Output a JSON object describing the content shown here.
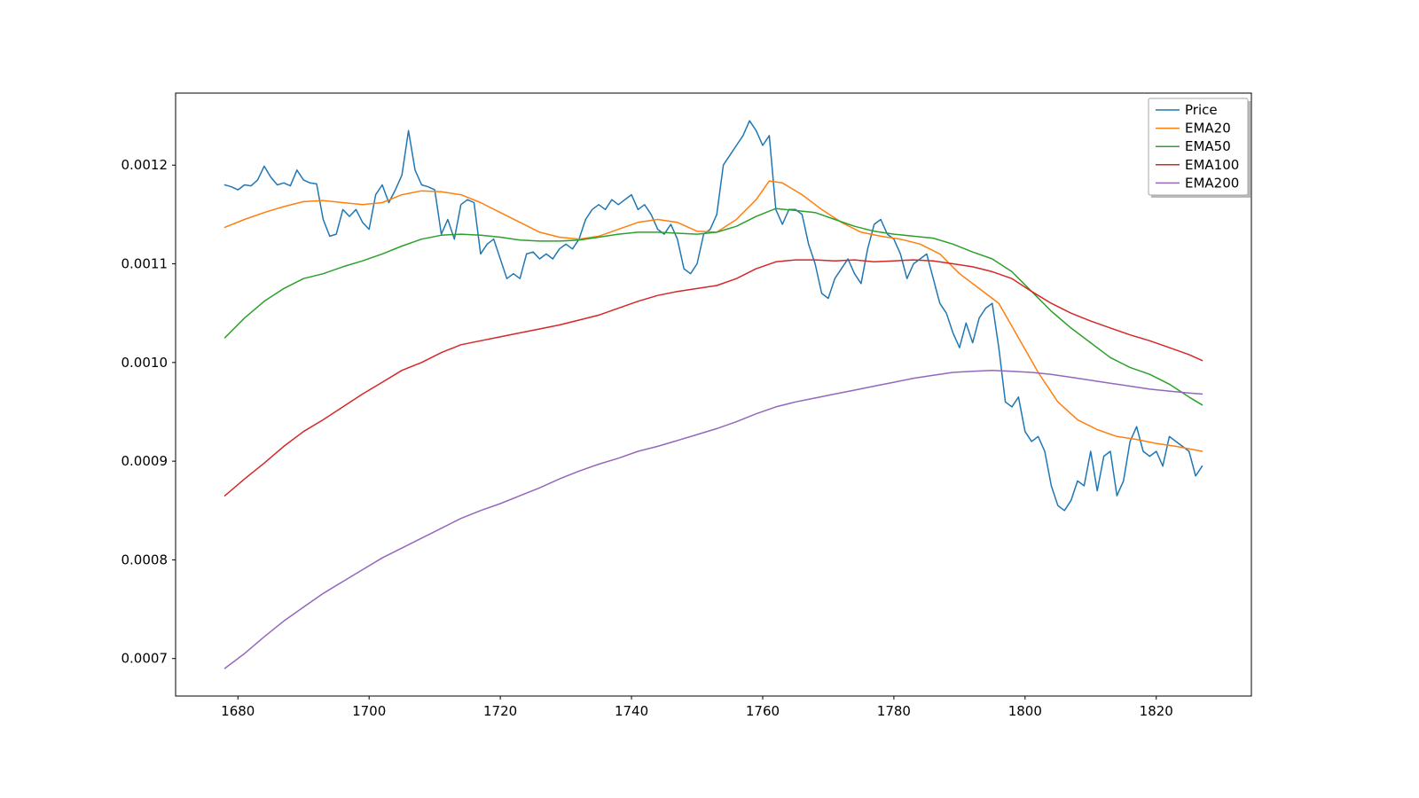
{
  "figure": {
    "background": "#ffffff",
    "axis_color": "#000000",
    "tick_label_color": "#262626"
  },
  "chart_data": {
    "type": "line",
    "title": "",
    "xlabel": "",
    "ylabel": "",
    "grid": false,
    "xlim": [
      1670.5,
      1834.5
    ],
    "ylim": [
      0.000662,
      0.001273
    ],
    "x_ticks": [
      1680,
      1700,
      1720,
      1740,
      1760,
      1780,
      1800,
      1820
    ],
    "y_ticks": [
      0.0007,
      0.0008,
      0.0009,
      0.001,
      0.0011,
      0.0012
    ],
    "legend": {
      "position": "upper right",
      "entries": [
        "Price",
        "EMA20",
        "EMA50",
        "EMA100",
        "EMA200"
      ]
    },
    "series": [
      {
        "name": "Price",
        "color": "#1f77b4",
        "x_start": 1678,
        "x_step": 1,
        "y": [
          0.00118,
          0.001178,
          0.001175,
          0.00118,
          0.001179,
          0.001185,
          0.001199,
          0.001188,
          0.00118,
          0.001182,
          0.001179,
          0.001195,
          0.001185,
          0.001182,
          0.001181,
          0.001145,
          0.001128,
          0.00113,
          0.001155,
          0.001148,
          0.001155,
          0.001142,
          0.001135,
          0.00117,
          0.00118,
          0.001162,
          0.001175,
          0.00119,
          0.001235,
          0.001195,
          0.00118,
          0.001178,
          0.001175,
          0.00113,
          0.001145,
          0.001125,
          0.00116,
          0.001165,
          0.001162,
          0.00111,
          0.00112,
          0.001125,
          0.001105,
          0.001085,
          0.00109,
          0.001085,
          0.00111,
          0.001112,
          0.001105,
          0.00111,
          0.001105,
          0.001115,
          0.00112,
          0.001115,
          0.001125,
          0.001145,
          0.001155,
          0.00116,
          0.001155,
          0.001165,
          0.00116,
          0.001165,
          0.00117,
          0.001155,
          0.00116,
          0.00115,
          0.001135,
          0.00113,
          0.00114,
          0.001125,
          0.001095,
          0.00109,
          0.0011,
          0.00113,
          0.001135,
          0.00115,
          0.0012,
          0.00121,
          0.00122,
          0.00123,
          0.001245,
          0.001235,
          0.00122,
          0.00123,
          0.001155,
          0.00114,
          0.001155,
          0.001155,
          0.00115,
          0.00112,
          0.0011,
          0.00107,
          0.001065,
          0.001085,
          0.001095,
          0.001105,
          0.00109,
          0.00108,
          0.001115,
          0.00114,
          0.001145,
          0.00113,
          0.001125,
          0.00111,
          0.001085,
          0.0011,
          0.001105,
          0.00111,
          0.001085,
          0.00106,
          0.00105,
          0.00103,
          0.001015,
          0.00104,
          0.00102,
          0.001045,
          0.001055,
          0.00106,
          0.001015,
          0.00096,
          0.000955,
          0.000965,
          0.00093,
          0.00092,
          0.000925,
          0.00091,
          0.000875,
          0.000855,
          0.00085,
          0.00086,
          0.00088,
          0.000875,
          0.00091,
          0.00087,
          0.000905,
          0.00091,
          0.000865,
          0.00088,
          0.00092,
          0.000935,
          0.00091,
          0.000905,
          0.00091,
          0.000895,
          0.000925,
          0.00092,
          0.000915,
          0.00091,
          0.000885,
          0.000895
        ]
      },
      {
        "name": "EMA20",
        "color": "#ff7f0e",
        "x": [
          1678,
          1681,
          1684,
          1687,
          1690,
          1693,
          1696,
          1699,
          1702,
          1705,
          1708,
          1711,
          1714,
          1717,
          1720,
          1723,
          1726,
          1729,
          1732,
          1735,
          1738,
          1741,
          1744,
          1747,
          1750,
          1753,
          1756,
          1759,
          1761,
          1763,
          1766,
          1769,
          1772,
          1775,
          1778,
          1781,
          1784,
          1787,
          1790,
          1793,
          1796,
          1799,
          1802,
          1805,
          1808,
          1811,
          1814,
          1817,
          1820,
          1823,
          1827
        ],
        "y": [
          0.001137,
          0.001145,
          0.001152,
          0.001158,
          0.001163,
          0.001164,
          0.001162,
          0.00116,
          0.001162,
          0.00117,
          0.001174,
          0.001173,
          0.00117,
          0.001162,
          0.001152,
          0.001142,
          0.001132,
          0.001127,
          0.001125,
          0.001128,
          0.001135,
          0.001142,
          0.001145,
          0.001142,
          0.001133,
          0.001132,
          0.001145,
          0.001165,
          0.001184,
          0.001182,
          0.00117,
          0.001155,
          0.001142,
          0.001132,
          0.001128,
          0.001125,
          0.00112,
          0.00111,
          0.00109,
          0.001075,
          0.00106,
          0.001025,
          0.00099,
          0.00096,
          0.000942,
          0.000932,
          0.000925,
          0.000922,
          0.000918,
          0.000915,
          0.00091
        ]
      },
      {
        "name": "EMA50",
        "color": "#2ca02c",
        "x": [
          1678,
          1681,
          1684,
          1687,
          1690,
          1693,
          1696,
          1699,
          1702,
          1705,
          1708,
          1711,
          1714,
          1717,
          1720,
          1723,
          1726,
          1729,
          1732,
          1735,
          1738,
          1741,
          1744,
          1747,
          1750,
          1753,
          1756,
          1759,
          1762,
          1765,
          1768,
          1771,
          1774,
          1777,
          1780,
          1783,
          1786,
          1789,
          1792,
          1795,
          1798,
          1801,
          1804,
          1807,
          1810,
          1813,
          1816,
          1819,
          1822,
          1825,
          1827
        ],
        "y": [
          0.001025,
          0.001045,
          0.001062,
          0.001075,
          0.001085,
          0.00109,
          0.001097,
          0.001103,
          0.00111,
          0.001118,
          0.001125,
          0.001129,
          0.00113,
          0.001129,
          0.001127,
          0.001124,
          0.001123,
          0.001123,
          0.001124,
          0.001127,
          0.00113,
          0.001132,
          0.001132,
          0.001131,
          0.00113,
          0.001132,
          0.001138,
          0.001148,
          0.001156,
          0.001154,
          0.001152,
          0.001145,
          0.001138,
          0.001133,
          0.00113,
          0.001128,
          0.001126,
          0.00112,
          0.001112,
          0.001105,
          0.001092,
          0.001072,
          0.001052,
          0.001035,
          0.00102,
          0.001005,
          0.000995,
          0.000988,
          0.000978,
          0.000965,
          0.000957
        ]
      },
      {
        "name": "EMA100",
        "color": "#d62728",
        "x": [
          1678,
          1681,
          1684,
          1687,
          1690,
          1693,
          1696,
          1699,
          1702,
          1705,
          1708,
          1711,
          1714,
          1717,
          1720,
          1723,
          1726,
          1729,
          1732,
          1735,
          1738,
          1741,
          1744,
          1747,
          1750,
          1753,
          1756,
          1759,
          1762,
          1765,
          1768,
          1771,
          1774,
          1777,
          1780,
          1783,
          1786,
          1789,
          1792,
          1795,
          1798,
          1801,
          1804,
          1807,
          1810,
          1813,
          1816,
          1819,
          1822,
          1825,
          1827
        ],
        "y": [
          0.000865,
          0.000882,
          0.000898,
          0.000915,
          0.00093,
          0.000942,
          0.000955,
          0.000968,
          0.00098,
          0.000992,
          0.001,
          0.00101,
          0.001018,
          0.001022,
          0.001026,
          0.00103,
          0.001034,
          0.001038,
          0.001043,
          0.001048,
          0.001055,
          0.001062,
          0.001068,
          0.001072,
          0.001075,
          0.001078,
          0.001085,
          0.001095,
          0.001102,
          0.001104,
          0.001104,
          0.001103,
          0.001104,
          0.001102,
          0.001103,
          0.001104,
          0.001103,
          0.0011,
          0.001097,
          0.001092,
          0.001085,
          0.001072,
          0.00106,
          0.00105,
          0.001042,
          0.001035,
          0.001028,
          0.001022,
          0.001015,
          0.001008,
          0.001002
        ]
      },
      {
        "name": "EMA200",
        "color": "#9467bd",
        "x": [
          1678,
          1681,
          1684,
          1687,
          1690,
          1693,
          1696,
          1699,
          1702,
          1705,
          1708,
          1711,
          1714,
          1717,
          1720,
          1723,
          1726,
          1729,
          1732,
          1735,
          1738,
          1741,
          1744,
          1747,
          1750,
          1753,
          1756,
          1759,
          1762,
          1765,
          1768,
          1771,
          1774,
          1777,
          1780,
          1783,
          1786,
          1789,
          1792,
          1795,
          1798,
          1801,
          1804,
          1807,
          1810,
          1813,
          1816,
          1819,
          1822,
          1825,
          1827
        ],
        "y": [
          0.00069,
          0.000705,
          0.000722,
          0.000738,
          0.000752,
          0.000766,
          0.000778,
          0.00079,
          0.000802,
          0.000812,
          0.000822,
          0.000832,
          0.000842,
          0.00085,
          0.000857,
          0.000865,
          0.000873,
          0.000882,
          0.00089,
          0.000897,
          0.000903,
          0.00091,
          0.000915,
          0.000921,
          0.000927,
          0.000933,
          0.00094,
          0.000948,
          0.000955,
          0.00096,
          0.000964,
          0.000968,
          0.000972,
          0.000976,
          0.00098,
          0.000984,
          0.000987,
          0.00099,
          0.000991,
          0.000992,
          0.000991,
          0.00099,
          0.000988,
          0.000985,
          0.000982,
          0.000979,
          0.000976,
          0.000973,
          0.000971,
          0.000969,
          0.000968
        ]
      }
    ]
  }
}
